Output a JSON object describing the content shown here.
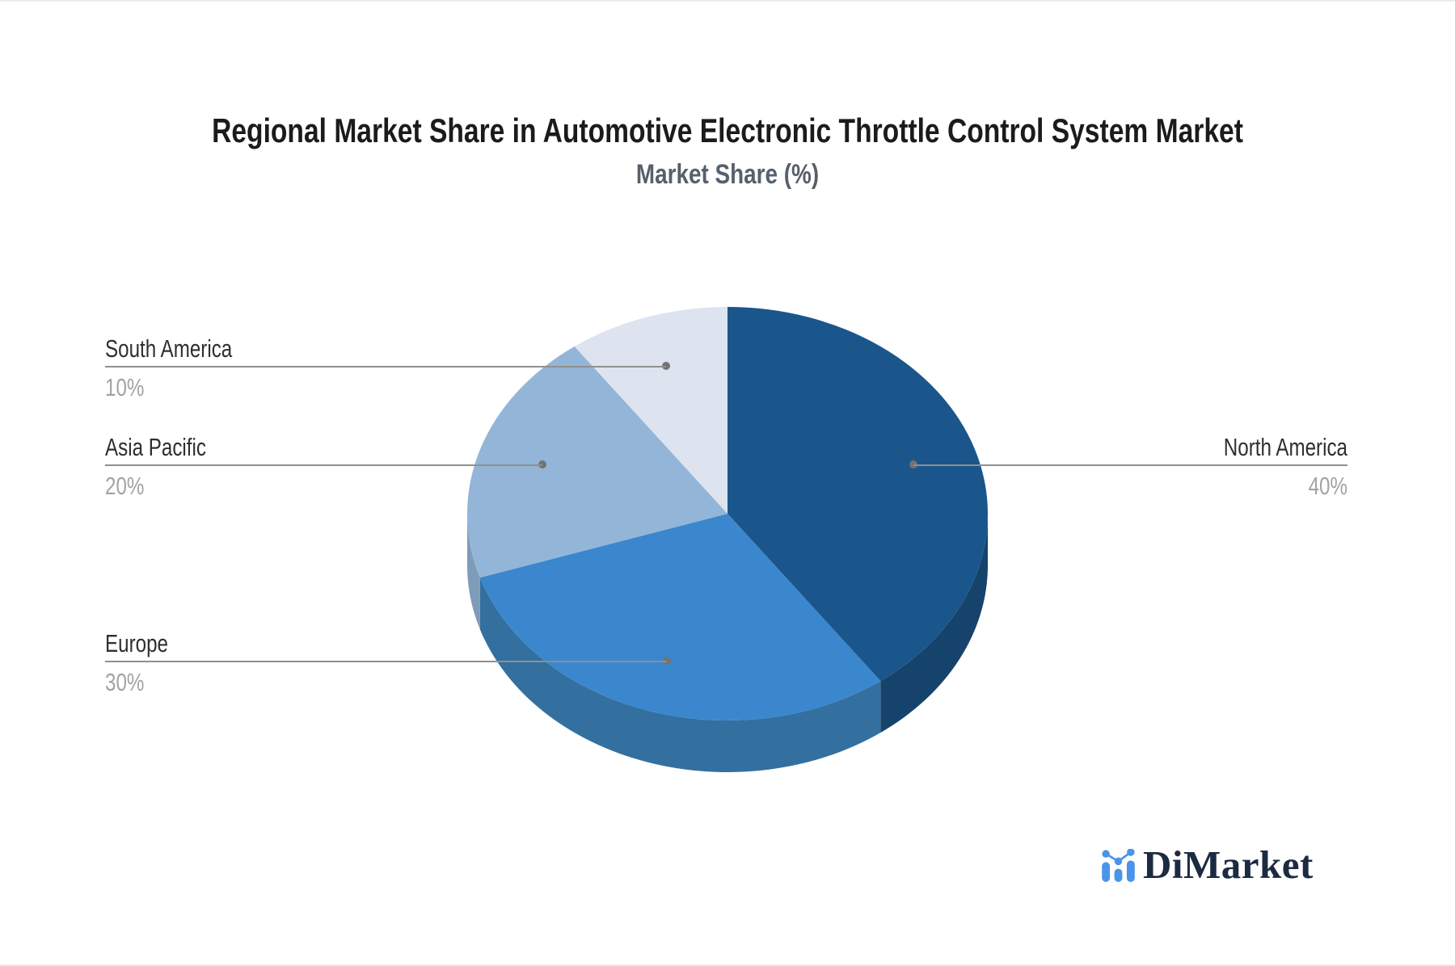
{
  "chart_data": {
    "type": "pie",
    "title": "Regional Market Share in Automotive Electronic Throttle Control System Market",
    "subtitle": "Market Share (%)",
    "unit": "%",
    "direction": "clockwise",
    "start_angle_deg": 0,
    "effect": "3d",
    "legend": "none",
    "labels_position": "callout-lines",
    "slices": [
      {
        "label": "North America",
        "value": 40,
        "display_value": "40%",
        "color": "#1a568c",
        "side_color": "#16436b",
        "callout_side": "right"
      },
      {
        "label": "Europe",
        "value": 30,
        "display_value": "30%",
        "color": "#3a87ce",
        "side_color": "#33709f",
        "callout_side": "left"
      },
      {
        "label": "Asia Pacific",
        "value": 20,
        "display_value": "20%",
        "color": "#93b5d8",
        "side_color": "#7e9cba",
        "callout_side": "left"
      },
      {
        "label": "South America",
        "value": 10,
        "display_value": "10%",
        "color": "#dde4ef",
        "side_color": "#c3cedd",
        "callout_side": "left"
      }
    ],
    "colors": {
      "leader_line": "#8f8f8f",
      "callout_dot": "#737373",
      "label_text": "#2f2f2f",
      "value_text": "#a3a3a3",
      "title_text": "#1b1b1b",
      "subtitle_text": "#57606c",
      "background": "#ffffff"
    }
  },
  "branding": {
    "name": "DiMarket",
    "icon": "bar-chart-trend-icon",
    "icon_color": "#4a94ea",
    "text_color": "#1c2b42"
  }
}
